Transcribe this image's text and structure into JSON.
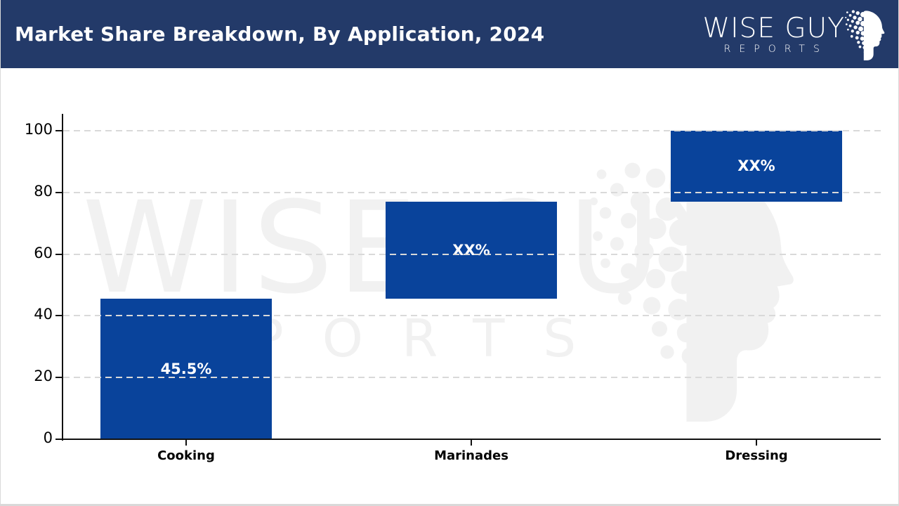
{
  "header": {
    "title": "Market Share Breakdown, By Application, 2024",
    "logo": {
      "line1": "WISE GUY",
      "line2": "REPORTS"
    }
  },
  "watermark": {
    "line1": "WISE GUY",
    "line2": "REPORTS"
  },
  "colors": {
    "header_bg": "#233a69",
    "bar": "#09439b",
    "grid": "#d9d9d9",
    "axis": "#111111",
    "watermark": "#f1f1f1",
    "bar_label": "#ffffff",
    "title_text": "#ffffff"
  },
  "chart_data": {
    "type": "bar",
    "subtype": "waterfall-floating-bars",
    "title": "Market Share Breakdown, By Application, 2024",
    "categories": [
      "Cooking",
      "Marinades",
      "Dressing"
    ],
    "segments": [
      {
        "category": "Cooking",
        "start": 0,
        "end": 45.5,
        "label": "45.5%"
      },
      {
        "category": "Marinades",
        "start": 45.5,
        "end": 77,
        "label": "XX%"
      },
      {
        "category": "Dressing",
        "start": 77,
        "end": 100,
        "label": "XX%"
      }
    ],
    "yticks": [
      0,
      20,
      40,
      60,
      80,
      100
    ],
    "ylim": [
      0,
      105
    ],
    "xlabel": "",
    "ylabel": "",
    "grid": "horizontal-dashed",
    "legend": "none"
  }
}
